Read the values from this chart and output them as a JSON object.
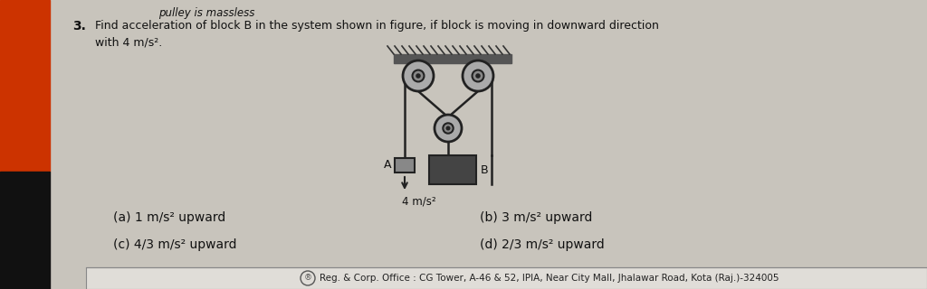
{
  "bg_color": "#b8b4ae",
  "paper_color": "#c8c4bc",
  "question_number": "3.",
  "question_text": "Find acceleration of block B in the system shown in figure, if block is moving in downward direction",
  "question_text2": "with 4 m/s².",
  "header_text": "pulley is massless",
  "option_a": "(a) 1 m/s² upward",
  "option_b": "(b) 3 m/s² upward",
  "option_c": "(c) 4/3 m/s² upward",
  "option_d": "(d) 2/3 m/s² upward",
  "footer_text": "Reg. & Corp. Office : CG Tower, A-46 & 52, IPIA, Near City Mall, Jhalawar Road, Kota (Raj.)-324005",
  "left_bar_color_top": "#cc3300",
  "left_bar_color_bot": "#111111",
  "text_color": "#111111",
  "footer_bg": "#e0ddd8",
  "footer_border": "#888888",
  "diagram_line_color": "#222222",
  "pulley_fill": "#bbbbbb",
  "block_a_color": "#888888",
  "block_b_color": "#444444",
  "ceiling_color": "#555555",
  "hatch_color": "#333333"
}
